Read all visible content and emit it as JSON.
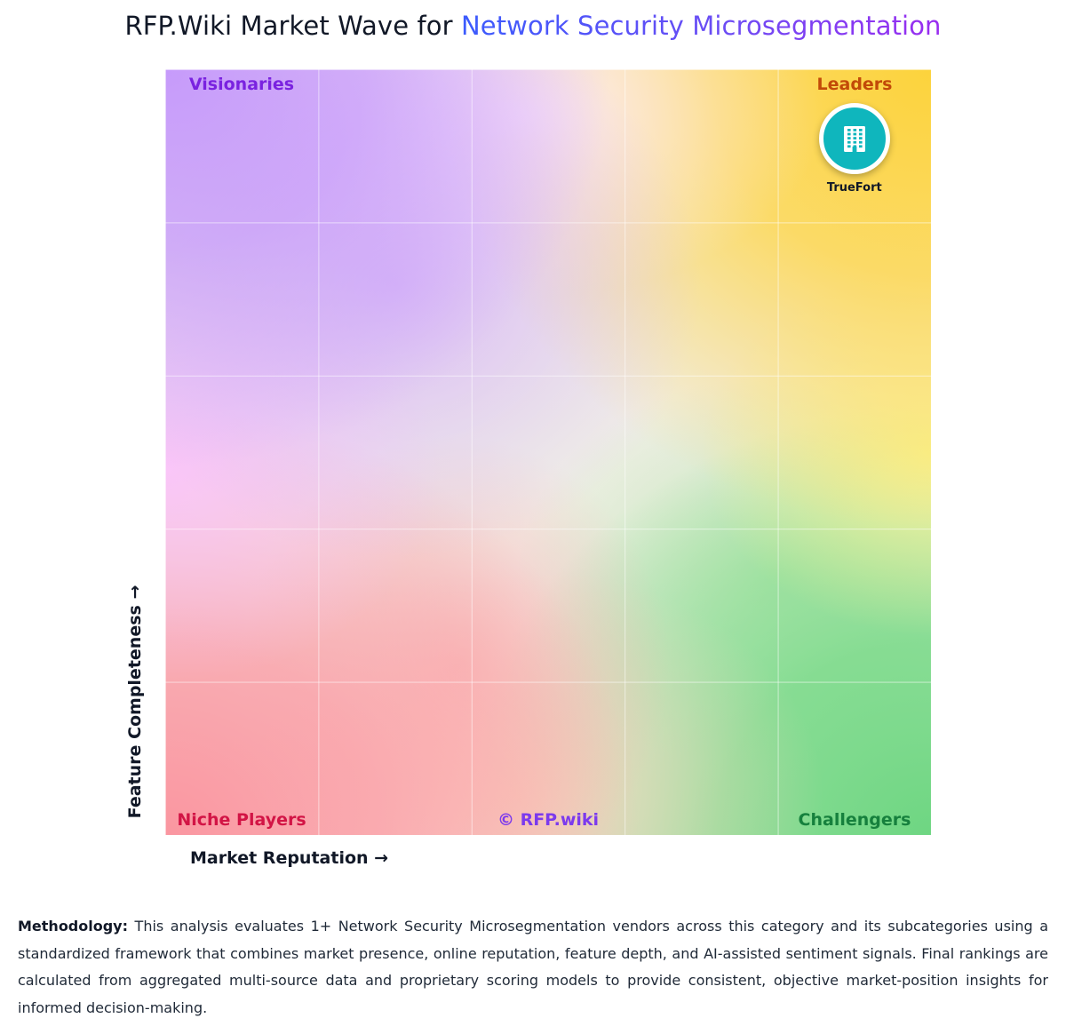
{
  "header": {
    "title_prefix": "RFP.Wiki Market Wave for ",
    "title_category": "Network Security Microsegmentation"
  },
  "chart_data": {
    "type": "scatter",
    "title": "RFP.Wiki Market Wave for Network Security Microsegmentation",
    "xlabel": "Market Reputation →",
    "ylabel": "Feature Completeness →",
    "xlim": [
      0,
      100
    ],
    "ylim": [
      0,
      100
    ],
    "grid": true,
    "quadrants": {
      "top_left": "Visionaries",
      "top_right": "Leaders",
      "bottom_left": "Niche Players",
      "bottom_right": "Challengers"
    },
    "watermark": "© RFP.wiki",
    "points": [
      {
        "name": "TrueFort",
        "x": 90,
        "y": 91,
        "icon": "building-icon",
        "color": "#0fb6bd"
      }
    ]
  },
  "methodology": {
    "label": "Methodology:",
    "text": " This analysis evaluates 1+ Network Security Microsegmentation vendors across this category and its subcategories using a standardized framework that combines market presence, online reputation, feature depth, and AI-assisted sentiment signals. Final rankings are calculated from aggregated multi-source data and proprietary scoring models to provide consistent, objective market-position insights for informed decision-making."
  }
}
